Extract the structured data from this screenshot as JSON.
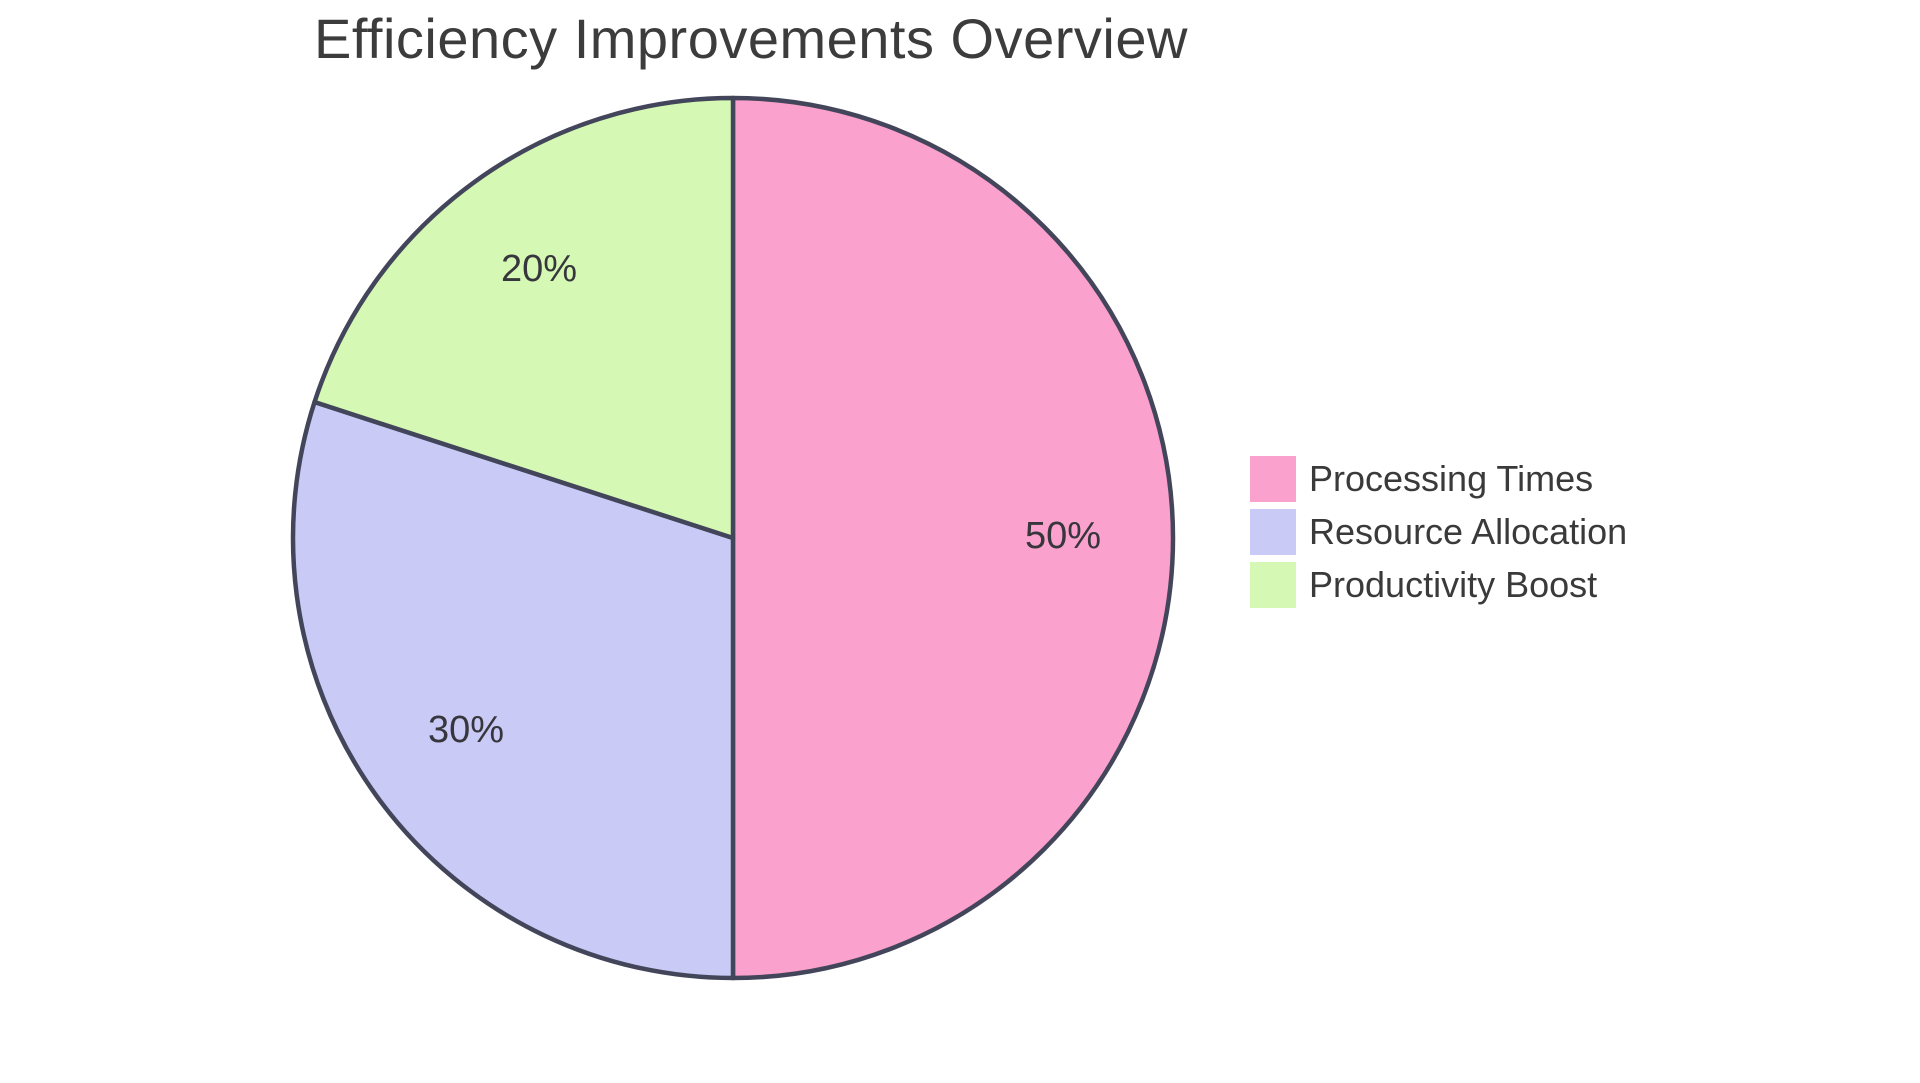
{
  "chart_data": {
    "type": "pie",
    "title": "Efficiency Improvements Overview",
    "labels": [
      "Processing Times",
      "Resource Allocation",
      "Productivity Boost"
    ],
    "values": [
      50,
      30,
      20
    ],
    "slice_labels": [
      "50%",
      "30%",
      "20%"
    ],
    "unit": "%",
    "colors": [
      "#FBA1CD",
      "#C9CAF6",
      "#D6F8B5"
    ],
    "stroke_color": "#43465A",
    "text_colors": {
      "title": "#3c3c3c",
      "slice_label": "#36363c",
      "legend_label": "#3a3a3a"
    },
    "background": "#ffffff",
    "legend_position": "right",
    "start_angle": "top",
    "direction": "clockwise"
  }
}
